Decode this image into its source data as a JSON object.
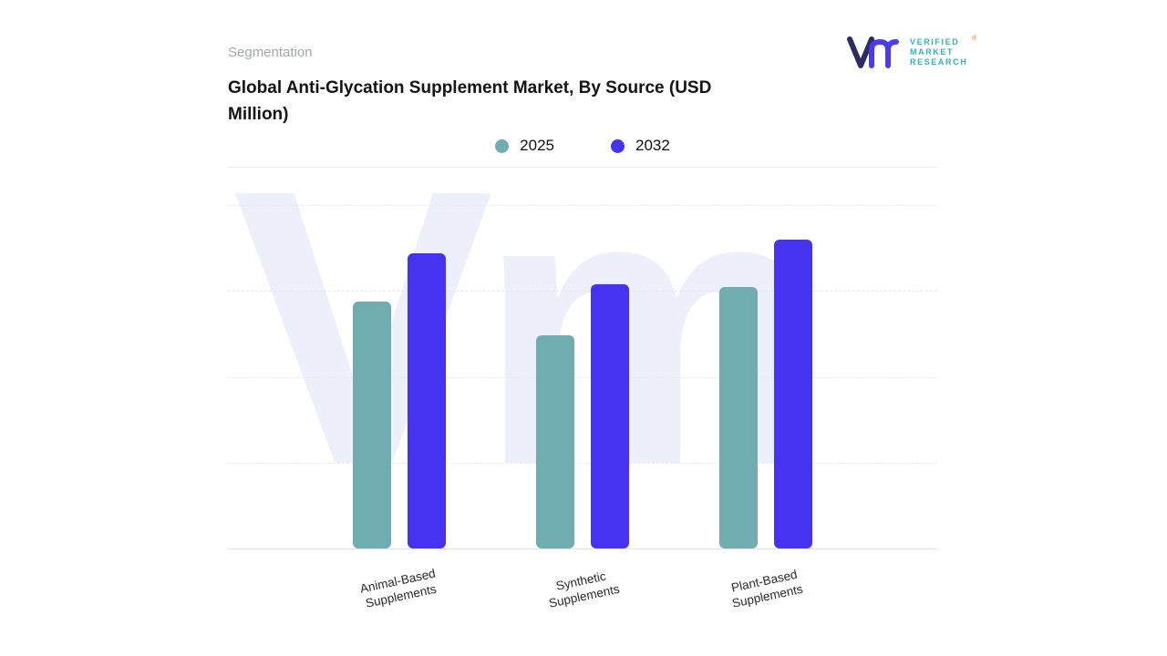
{
  "header": {
    "eyebrow": "Segmentation",
    "title": "Global Anti-Glycation Supplement Market, By Source (USD Million)"
  },
  "logo": {
    "mark": "Vm",
    "lines": [
      "VERIFIED",
      "MARKET",
      "RESEARCH"
    ],
    "registered": "®",
    "mark_color": "#4a3bee",
    "text_color": "#2eb4bd"
  },
  "legend": [
    {
      "label": "2025",
      "color": "#6fadb1"
    },
    {
      "label": "2032",
      "color": "#4633f2"
    }
  ],
  "chart_data": {
    "type": "bar",
    "title": "Global Anti-Glycation Supplement Market, By Source (USD Million)",
    "categories": [
      "Animal-Based Supplements",
      "Synthetic Supplements",
      "Plant-Based Supplements"
    ],
    "series": [
      {
        "name": "2025",
        "color": "#6fadb1",
        "values": [
          72,
          62,
          76
        ]
      },
      {
        "name": "2032",
        "color": "#4633f2",
        "values": [
          86,
          77,
          90
        ]
      }
    ],
    "xlabel": "",
    "ylabel": "",
    "ylim": [
      0,
      100
    ],
    "y_tick_labels_visible": false,
    "grid": "horizontal-dashed",
    "legend_position": "top-center",
    "watermark": "Vm",
    "note": "No numeric axis labels shown; values estimated on a 0-100 relative scale from bar heights."
  }
}
